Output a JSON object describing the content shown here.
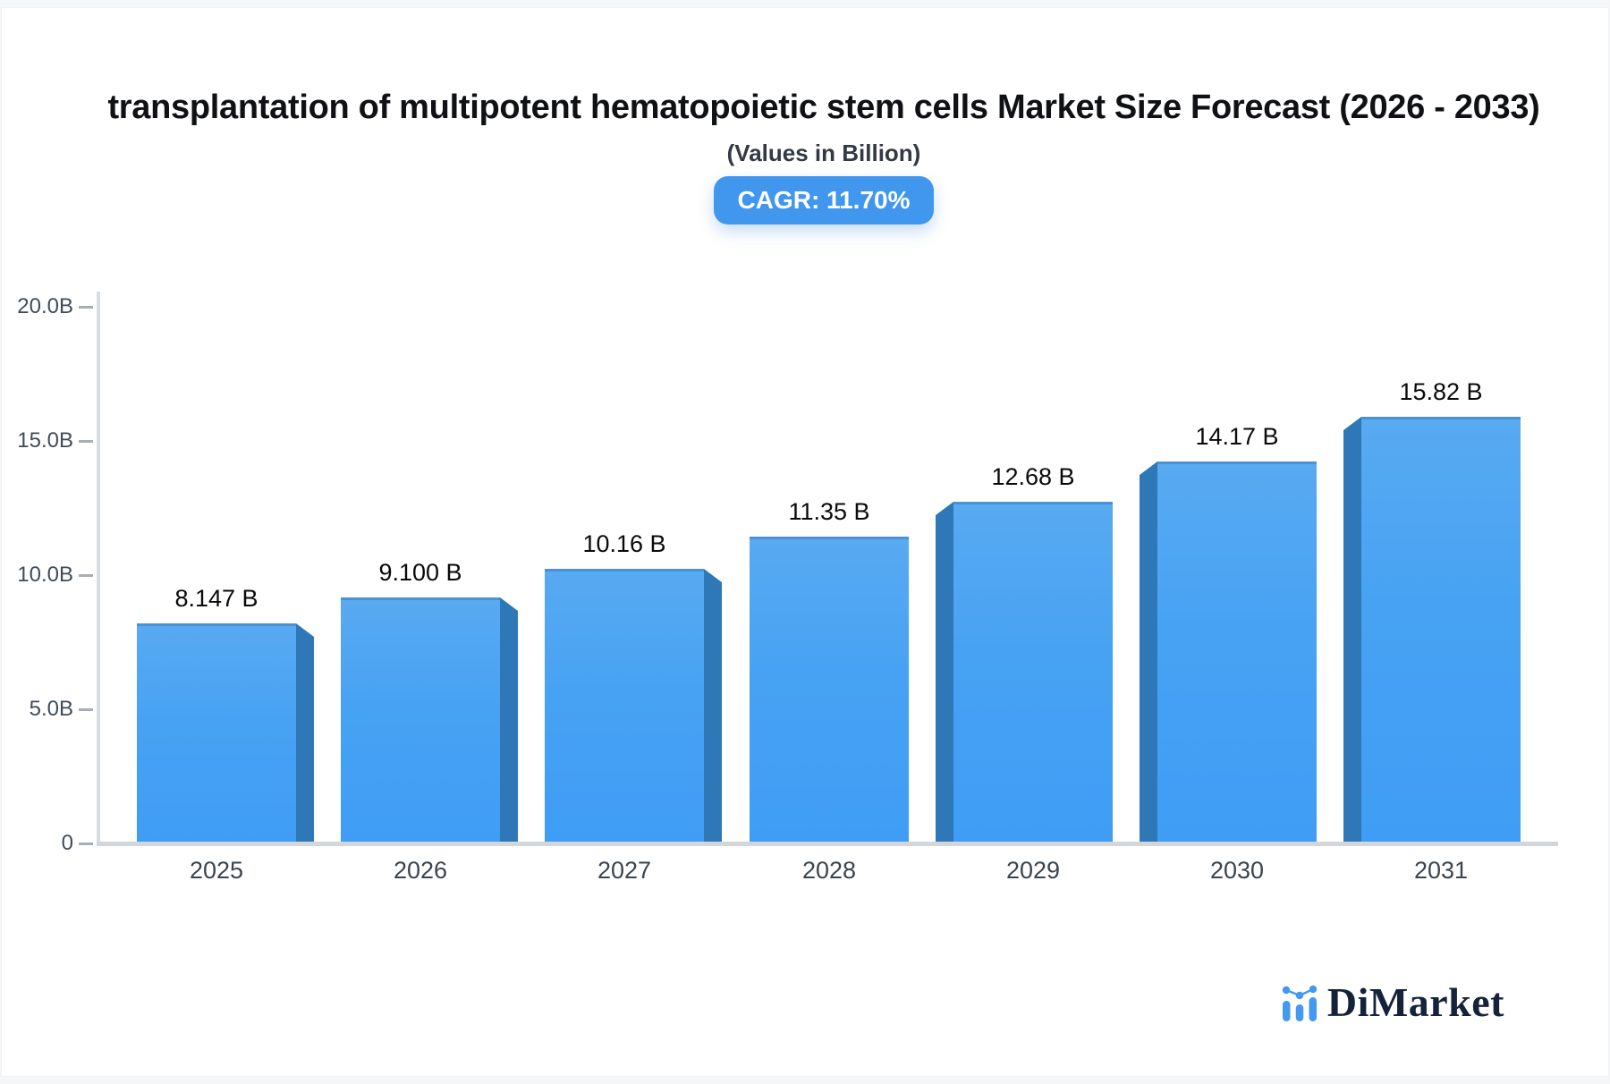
{
  "page": {
    "title": "transplantation of multipotent hematopoietic stem cells Market Size Forecast (2026 - 2033)",
    "subtitle": "(Values in Billion)",
    "cagr_badge": "CAGR: 11.70%"
  },
  "brand": {
    "name": "DiMarket",
    "icon": "bar-chart-logo-icon"
  },
  "colors": {
    "bar_face_top": "#58aaf1",
    "bar_face_bottom": "#3f9df5",
    "bar_side": "#2e78b8",
    "badge_background": "#4196ee",
    "badge_text": "#ffffff",
    "axis_line": "#d6d9dd",
    "value_label_text": "#0a0a0b",
    "axis_label_text": "#3f4a58",
    "logo_blue": "#4498f2",
    "logo_navy": "#15223b"
  },
  "chart_data": {
    "type": "bar",
    "title": "transplantation of multipotent hematopoietic stem cells Market Size Forecast (2026 - 2033)",
    "subtitle": "(Values in Billion)",
    "cagr": "CAGR: 11.70%",
    "categories": [
      "2025",
      "2026",
      "2027",
      "2028",
      "2029",
      "2030",
      "2031"
    ],
    "values": [
      8.147,
      9.1,
      10.16,
      11.35,
      12.68,
      14.17,
      15.82
    ],
    "value_labels": [
      "8.147 B",
      "9.100 B",
      "10.16 B",
      "11.35 B",
      "12.68 B",
      "14.17 B",
      "15.82 B"
    ],
    "xlabel": "",
    "ylabel": "",
    "ylim": [
      0,
      20
    ],
    "yticks": [
      {
        "value": 20,
        "label": "20.0B"
      },
      {
        "value": 15,
        "label": "15.0B"
      },
      {
        "value": 10,
        "label": "10.0B"
      },
      {
        "value": 5,
        "label": "5.0B"
      },
      {
        "value": 0,
        "label": "0"
      }
    ],
    "grid": false,
    "legend": false
  }
}
